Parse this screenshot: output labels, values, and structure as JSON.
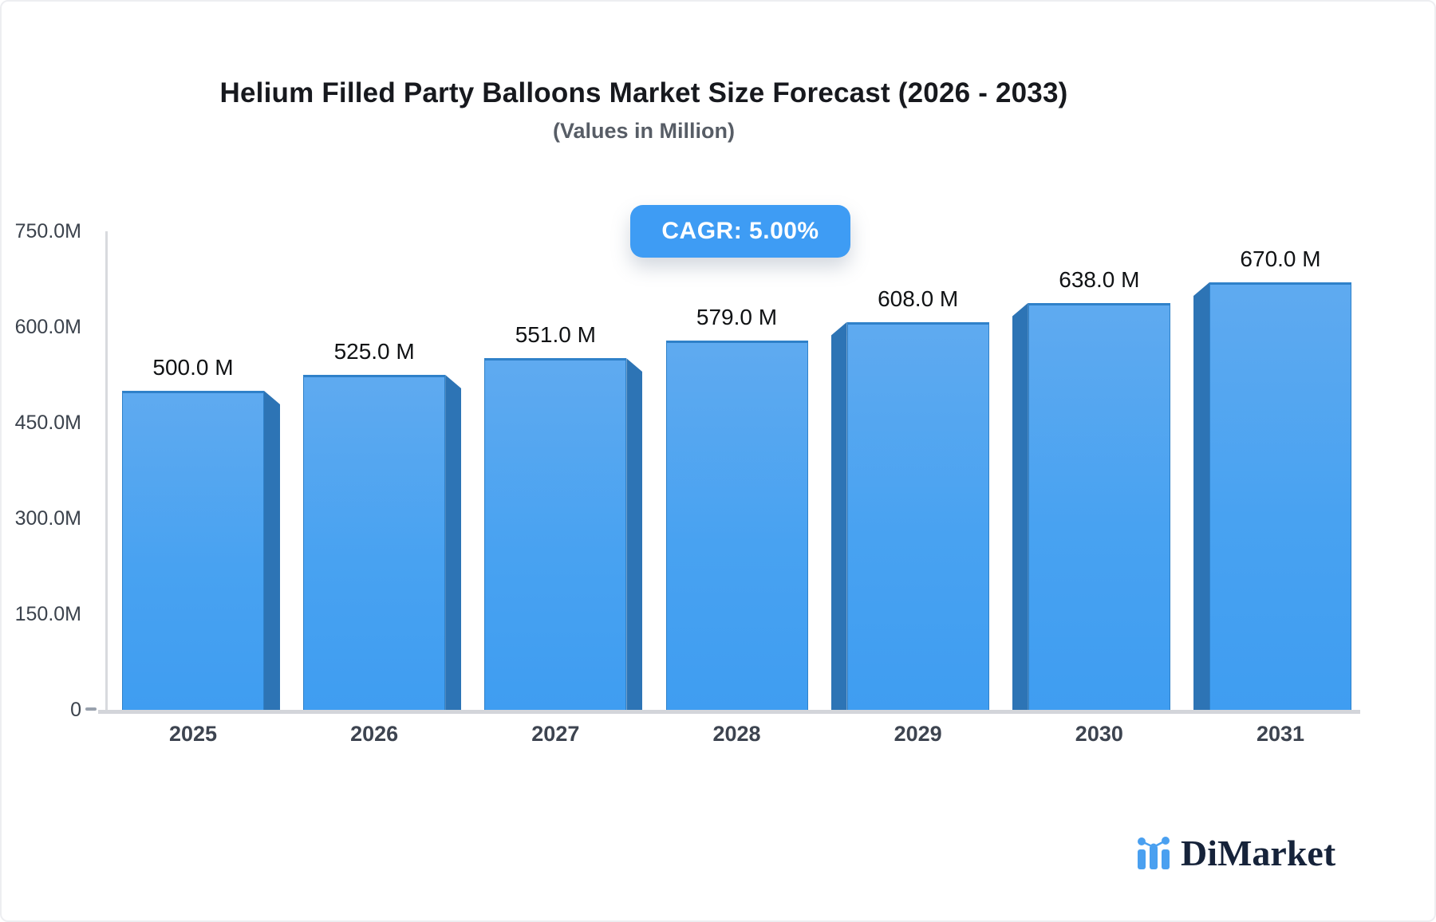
{
  "chart_data": {
    "type": "bar",
    "title": "Helium Filled Party Balloons Market Size Forecast (2026 - 2033)",
    "subtitle": "(Values in Million)",
    "cagr_badge": "CAGR: 5.00%",
    "categories": [
      "2025",
      "2026",
      "2027",
      "2028",
      "2029",
      "2030",
      "2031"
    ],
    "values": [
      500.0,
      525.0,
      551.0,
      579.0,
      608.0,
      638.0,
      670.0
    ],
    "bar_labels": [
      "500.0 M",
      "525.0 M",
      "551.0 M",
      "579.0 M",
      "608.0 M",
      "638.0 M",
      "670.0 M"
    ],
    "xlabel": "",
    "ylabel": "",
    "ylim": [
      0,
      750
    ],
    "ytick_values": [
      750,
      600,
      450,
      300,
      150,
      0
    ],
    "ytick_labels": [
      "750.0M",
      "600.0M",
      "450.0M",
      "300.0M",
      "150.0M",
      "0"
    ],
    "grid": "off",
    "legend": "none",
    "bar_style": "3d-extruded-blue"
  },
  "colors": {
    "badge_bg": "#3E9CF4",
    "bar_face_top": "#5FAAF0",
    "bar_face_mid": "#48A2F1",
    "bar_face_bottom": "#3F9DF1",
    "bar_top_edge": "#2F81C9",
    "bar_side": "#2D74B5",
    "axis_line": "#D8DADE",
    "logo_blue": "#4AA0F0",
    "logo_navy": "#16233A"
  },
  "footer": {
    "brand": "DiMarket"
  }
}
